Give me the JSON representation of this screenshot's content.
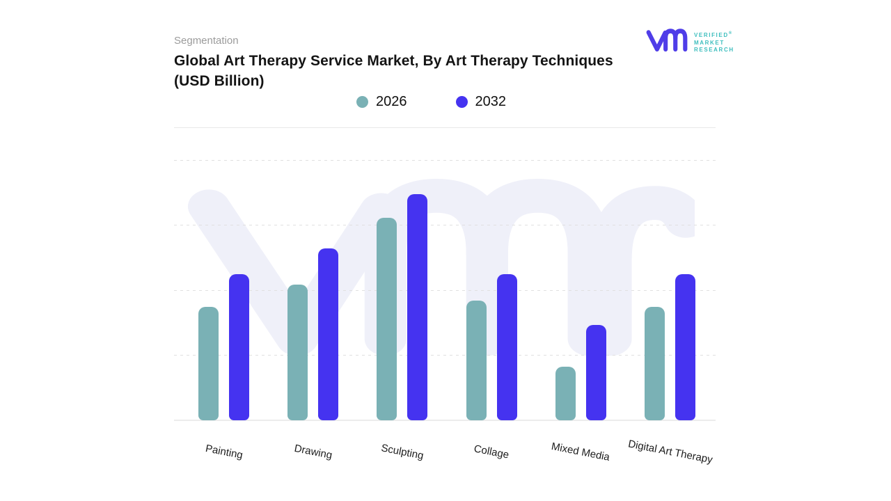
{
  "header": {
    "eyebrow": "Segmentation",
    "title_line1": "Global Art Therapy Service Market, By Art Therapy Techniques",
    "title_line2": "(USD Billion)"
  },
  "logo": {
    "monogram_icon": "vmr-monogram",
    "monogram_color": "#4F3DE8",
    "wordmark_color": "#3EBEBE",
    "lines": [
      "VERIFIED",
      "MARKET",
      "RESEARCH"
    ],
    "registered_mark": "®"
  },
  "legend": {
    "items": [
      {
        "label": "2026",
        "color": "#7AB1B5"
      },
      {
        "label": "2032",
        "color": "#4533F0"
      }
    ]
  },
  "chart_data": {
    "type": "bar",
    "title": "Global Art Therapy Service Market, By Art Therapy Techniques (USD Billion)",
    "categories": [
      "Painting",
      "Drawing",
      "Sculpting",
      "Collage",
      "Mixed Media",
      "Digital Art Therapy"
    ],
    "series": [
      {
        "name": "2026",
        "color": "#7AB1B5",
        "values": [
          1.74,
          2.09,
          3.11,
          1.84,
          0.82,
          1.74
        ]
      },
      {
        "name": "2032",
        "color": "#4533F0",
        "values": [
          2.25,
          2.64,
          3.47,
          2.25,
          1.47,
          2.25
        ]
      }
    ],
    "xlabel": "",
    "ylabel": "",
    "ylim": [
      0,
      4.5
    ],
    "y_gridline_values": [
      1,
      2,
      3,
      4
    ],
    "y_axis_tick_labels_visible": false,
    "grid": "horizontal-dashed",
    "legend_position": "top-center",
    "note": "No numeric axis tick labels are shown in the figure; values are estimated in gridline units from bar heights"
  },
  "watermark": {
    "name": "vmr-monogram-watermark",
    "color": "#EFF0F9"
  },
  "colors": {
    "grid": "#E0E0E0",
    "axisline": "#ECECEC",
    "divider": "#E8E8E8",
    "title": "#141414",
    "eyebrow": "#9B9B9B",
    "label": "#1C1C1C"
  }
}
